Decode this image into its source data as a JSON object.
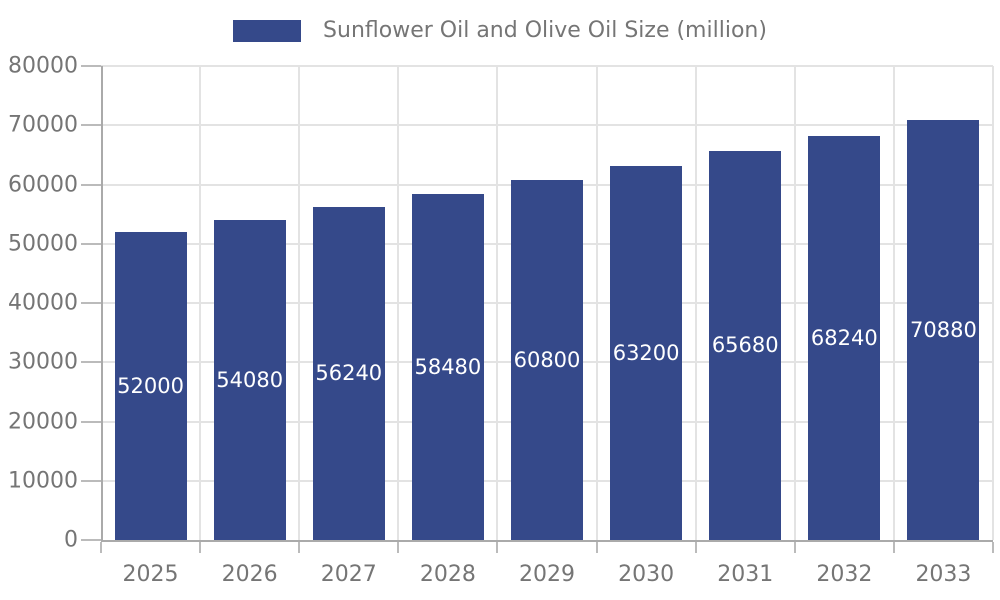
{
  "chart_data": {
    "type": "bar",
    "title": "Sunflower Oil and Olive Oil Size (million)",
    "legend": {
      "position": "top",
      "entries": [
        "Sunflower Oil and Olive Oil Size (million)"
      ]
    },
    "categories": [
      "2025",
      "2026",
      "2027",
      "2028",
      "2029",
      "2030",
      "2031",
      "2032",
      "2033"
    ],
    "series": [
      {
        "name": "Sunflower Oil and Olive Oil Size (million)",
        "values": [
          52000,
          54080,
          56240,
          58480,
          60800,
          63200,
          65680,
          68240,
          70880
        ]
      }
    ],
    "value_labels": [
      "52000",
      "54080",
      "56240",
      "58480",
      "60800",
      "63200",
      "65680",
      "68240",
      "70880"
    ],
    "xlabel": "",
    "ylabel": "",
    "ylim": [
      0,
      80000
    ],
    "ytick_step": 10000,
    "ytick_labels": [
      "0",
      "10000",
      "20000",
      "30000",
      "40000",
      "50000",
      "60000",
      "70000",
      "80000"
    ],
    "grid": true,
    "colors": {
      "bar": "#35498A",
      "grid": "#E3E3E3",
      "axis": "#AAAAAA",
      "tick": "#BBBBBB",
      "tick_label": "#757575",
      "legend_text": "#757575",
      "value_label": "#FFFFFF",
      "background": "#FFFFFF"
    }
  }
}
